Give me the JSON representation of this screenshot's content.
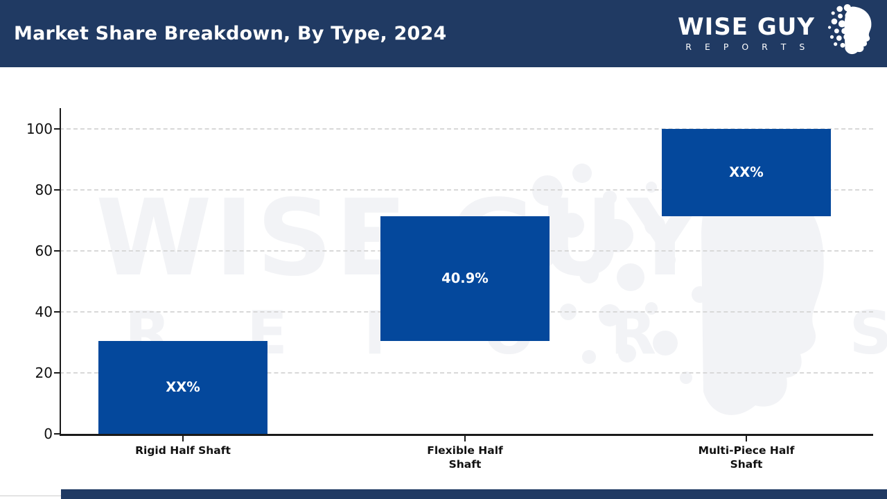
{
  "header": {
    "title": "Market Share Breakdown, By Type, 2024",
    "logo": {
      "line1": "WISE GUY",
      "line2": "R E P O R T S"
    }
  },
  "watermark": {
    "line1": "WISE GUY",
    "line2": "R E P O R T S"
  },
  "colors": {
    "header_bg": "#203a63",
    "footer_bg": "#203a63",
    "bar": "#04489c",
    "bar_label": "#ffffff",
    "gridline": "#d8d8d8",
    "axis": "#1a1a1a",
    "tick_text": "#111111",
    "watermark": "#f2f3f6"
  },
  "chart_data": {
    "type": "bar",
    "subtype": "stacked-percentage-waterfall",
    "title": "Market Share Breakdown, By Type, 2024",
    "categories": [
      "Rigid Half Shaft",
      "Flexible Half Shaft",
      "Multi-Piece Half Shaft"
    ],
    "category_lines": [
      [
        "Rigid Half Shaft"
      ],
      [
        "Flexible Half",
        "Shaft"
      ],
      [
        "Multi-Piece Half",
        "Shaft"
      ]
    ],
    "segments": [
      {
        "category": "Rigid Half Shaft",
        "label": "XX%",
        "start": 0,
        "end": 30.5
      },
      {
        "category": "Flexible Half Shaft",
        "label": "40.9%",
        "start": 30.5,
        "end": 71.4
      },
      {
        "category": "Multi-Piece Half Shaft",
        "label": "XX%",
        "start": 71.4,
        "end": 100
      }
    ],
    "ylim": [
      0,
      100
    ],
    "yticks": [
      0,
      20,
      40,
      60,
      80,
      100
    ],
    "grid": "dashed-horizontal",
    "legend": "none"
  }
}
